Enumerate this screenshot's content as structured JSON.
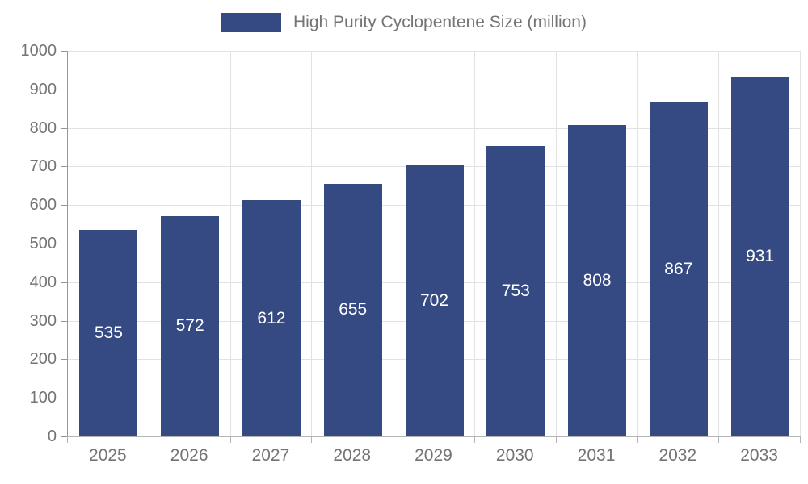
{
  "legend": {
    "label": "High Purity Cyclopentene Size (million)"
  },
  "chart_data": {
    "type": "bar",
    "title": "High Purity Cyclopentene Size (million)",
    "categories": [
      "2025",
      "2026",
      "2027",
      "2028",
      "2029",
      "2030",
      "2031",
      "2032",
      "2033"
    ],
    "values": [
      535,
      572,
      612,
      655,
      702,
      753,
      808,
      867,
      931
    ],
    "xlabel": "",
    "ylabel": "",
    "ylim": [
      0,
      1000
    ],
    "y_ticks": [
      0,
      100,
      200,
      300,
      400,
      500,
      600,
      700,
      800,
      900,
      1000
    ],
    "grid": true,
    "legend_position": "top",
    "bar_color": "#354982",
    "value_label_color": "#ffffff",
    "axis_text_color": "#747474",
    "grid_color": "#e2e2e2"
  }
}
